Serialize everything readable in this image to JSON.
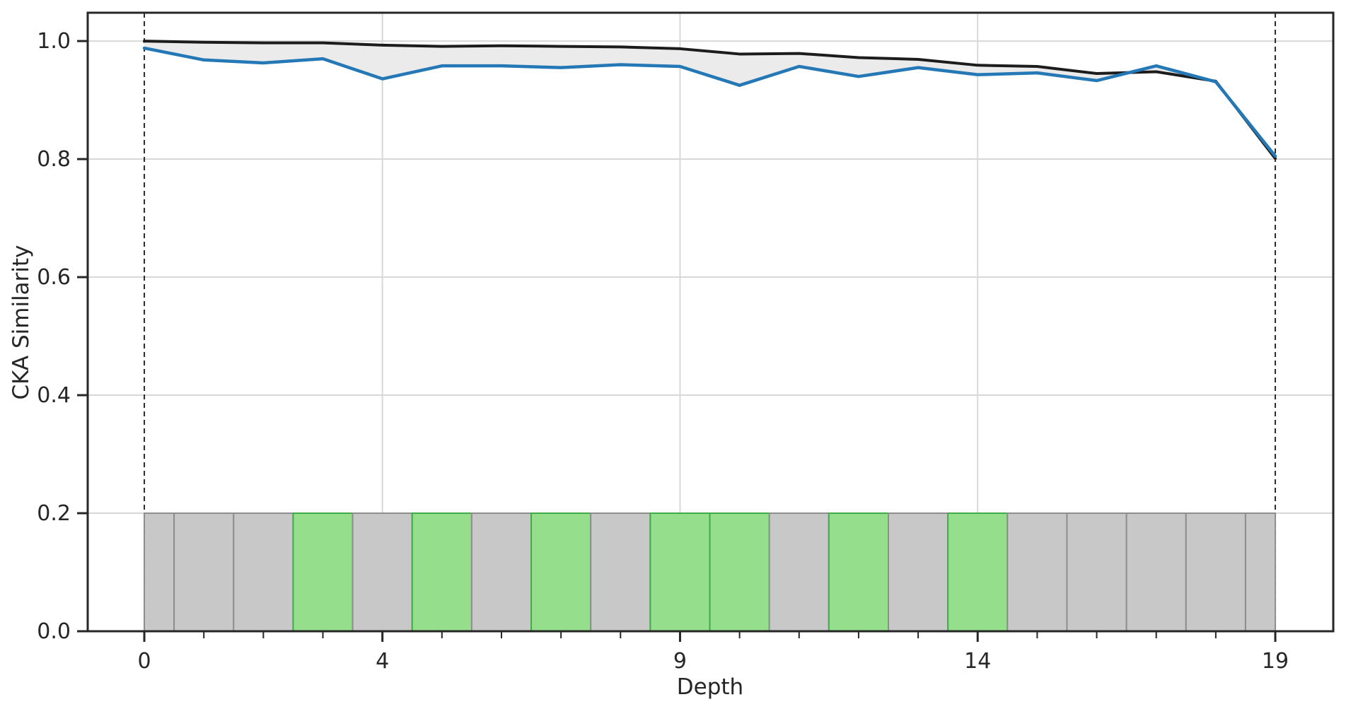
{
  "figure": {
    "background": "#ffffff"
  },
  "chart_data": {
    "type": "line",
    "title": "",
    "xlabel": "Depth",
    "ylabel": "CKA Similarity",
    "x": [
      0,
      1,
      2,
      3,
      4,
      5,
      6,
      7,
      8,
      9,
      10,
      11,
      12,
      13,
      14,
      15,
      16,
      17,
      18,
      19
    ],
    "series": [
      {
        "name": "black_line",
        "color": "#1c1c1c",
        "width": 4,
        "values": [
          1.0,
          0.998,
          0.997,
          0.997,
          0.993,
          0.991,
          0.992,
          0.991,
          0.99,
          0.987,
          0.978,
          0.979,
          0.972,
          0.969,
          0.959,
          0.957,
          0.945,
          0.948,
          0.932,
          0.801
        ]
      },
      {
        "name": "blue_line",
        "color": "#2478b5",
        "width": 4.5,
        "values": [
          0.988,
          0.968,
          0.963,
          0.97,
          0.936,
          0.958,
          0.958,
          0.955,
          0.96,
          0.957,
          0.925,
          0.957,
          0.94,
          0.955,
          0.943,
          0.946,
          0.933,
          0.958,
          0.931,
          0.805
        ]
      }
    ],
    "fill_between": {
      "between": [
        "black_line",
        "blue_line"
      ],
      "color": "#ebebeb"
    },
    "bars": {
      "depths": [
        0,
        1,
        2,
        3,
        4,
        5,
        6,
        7,
        8,
        9,
        10,
        11,
        12,
        13,
        14,
        15,
        16,
        17,
        18,
        19
      ],
      "height": 0.2,
      "half_width": 0.5,
      "clip_range": [
        0,
        19
      ],
      "colors": [
        "gray",
        "gray",
        "gray",
        "green",
        "gray",
        "green",
        "gray",
        "green",
        "gray",
        "green",
        "green",
        "gray",
        "green",
        "gray",
        "green",
        "gray",
        "gray",
        "gray",
        "gray",
        "gray"
      ],
      "fill": {
        "gray": "#c8c8c8",
        "green": "#95de8c"
      },
      "edge": {
        "gray": "#8e8e8e",
        "green": "#3fad47"
      }
    },
    "vlines": {
      "x": [
        0,
        19
      ],
      "color": "#2b2b2b",
      "dash": "7 5",
      "width": 2
    },
    "grid": {
      "color": "#d8d8d8",
      "width": 2,
      "x_values": [
        4,
        9,
        14
      ],
      "y_values": [
        0.0,
        0.2,
        0.4,
        0.6,
        0.8,
        1.0
      ]
    },
    "xticks": {
      "minor": [
        0,
        1,
        2,
        3,
        4,
        5,
        6,
        7,
        8,
        9,
        10,
        11,
        12,
        13,
        14,
        15,
        16,
        17,
        18,
        19
      ],
      "major": [
        0,
        4,
        9,
        14,
        19
      ],
      "labels": [
        "0",
        "4",
        "9",
        "14",
        "19"
      ]
    },
    "yticks": {
      "values": [
        0.0,
        0.2,
        0.4,
        0.6,
        0.8,
        1.0
      ],
      "labels": [
        "0.0",
        "0.2",
        "0.4",
        "0.6",
        "0.8",
        "1.0"
      ]
    },
    "xlim": [
      -0.951,
      19.974
    ],
    "ylim": [
      0,
      1.048
    ],
    "spine_color": "#262626",
    "legend": null
  }
}
